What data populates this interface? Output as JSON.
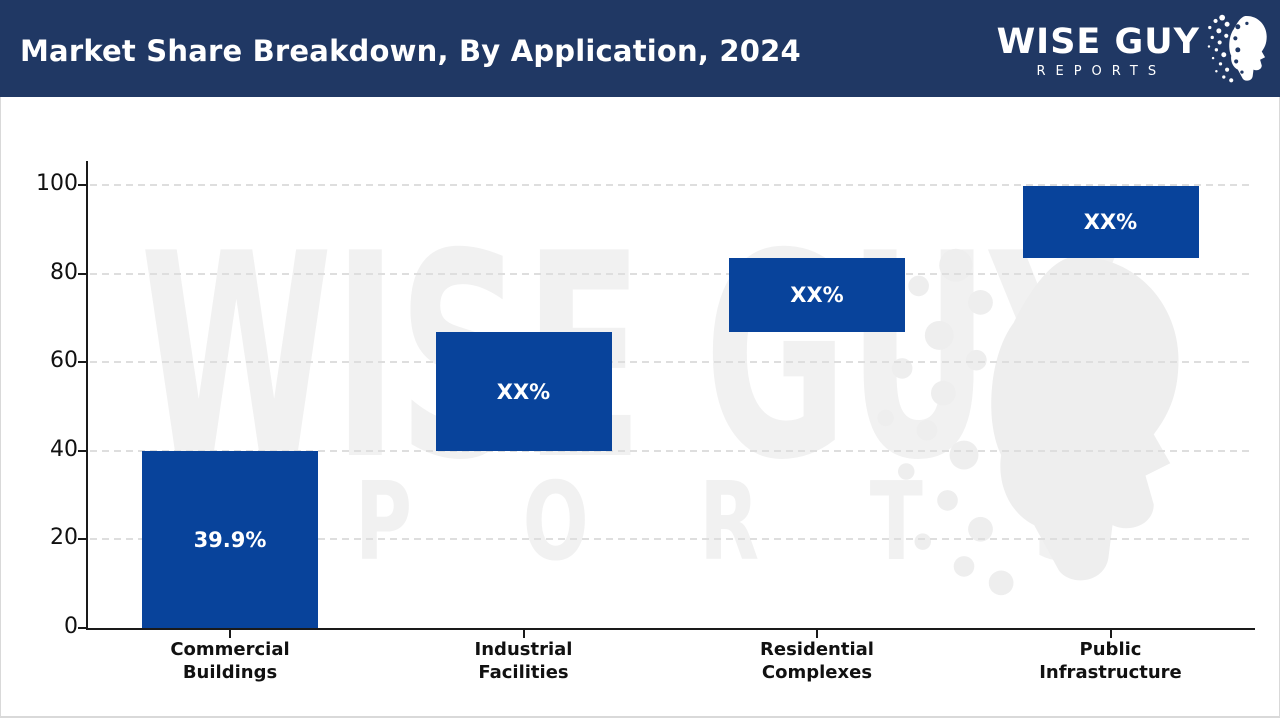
{
  "header": {
    "title": "Market Share Breakdown, By Application, 2024",
    "logo": {
      "name": "WISE GUY",
      "sub": "REPORTS"
    }
  },
  "watermark": {
    "big": "WISE GUY",
    "small": "P O R T S"
  },
  "colors": {
    "header_bg": "#203864",
    "bar": "#08439b",
    "grid": "#dedede",
    "axis": "#1a1a1a",
    "bar_label": "#ffffff",
    "tick_label": "#111111",
    "watermark": "#f1f1f1",
    "watermark_head": "#eeeeee"
  },
  "chart_data": {
    "type": "bar",
    "subtype": "waterfall",
    "title": "Market Share Breakdown, By Application, 2024",
    "xlabel": "",
    "ylabel": "",
    "ylim": [
      0,
      105
    ],
    "yticks": [
      0,
      20,
      40,
      60,
      80,
      100
    ],
    "grid": "horizontal-dashed",
    "legend": "none",
    "categories": [
      "Commercial\nBuildings",
      "Industrial\nFacilities",
      "Residential\nComplexes",
      "Public\nInfrastructure"
    ],
    "segments": [
      {
        "category": "Commercial Buildings",
        "start": 0,
        "end": 39.9,
        "label": "39.9%"
      },
      {
        "category": "Industrial Facilities",
        "start": 39.9,
        "end": 66.8,
        "label": "XX%"
      },
      {
        "category": "Residential Complexes",
        "start": 66.8,
        "end": 83.6,
        "label": "XX%"
      },
      {
        "category": "Public Infrastructure",
        "start": 83.6,
        "end": 99.8,
        "label": "XX%"
      }
    ]
  }
}
